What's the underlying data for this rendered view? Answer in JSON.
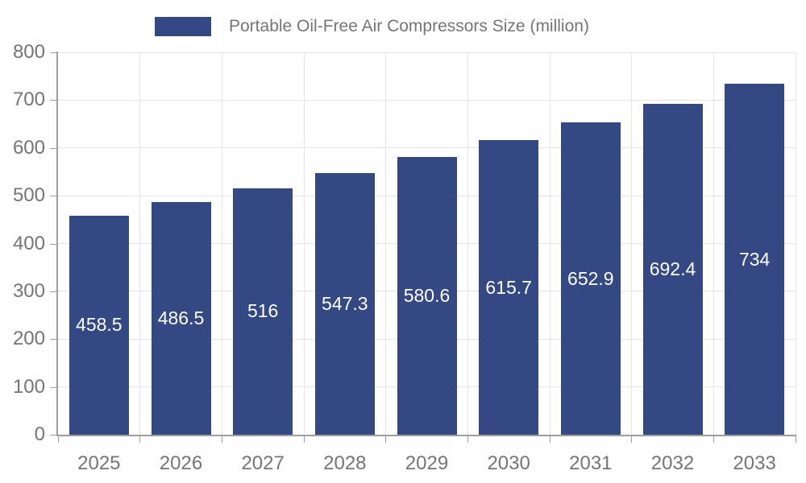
{
  "chart_data": {
    "type": "bar",
    "title": "Portable Oil-Free Air Compressors Size (million)",
    "categories": [
      "2025",
      "2026",
      "2027",
      "2028",
      "2029",
      "2030",
      "2031",
      "2032",
      "2033"
    ],
    "series": [
      {
        "name": "Portable Oil-Free Air Compressors Size (million)",
        "values": [
          458.5,
          486.5,
          516,
          547.3,
          580.6,
          615.7,
          652.9,
          692.4,
          734
        ]
      }
    ],
    "data_labels": [
      "458.5",
      "486.5",
      "516",
      "547.3",
      "580.6",
      "615.7",
      "652.9",
      "692.4",
      "734"
    ],
    "xlabel": "",
    "ylabel": "",
    "ylim": [
      0,
      800
    ],
    "yticks": [
      0,
      100,
      200,
      300,
      400,
      500,
      600,
      700,
      800
    ],
    "grid": true,
    "legend_position": "top",
    "colors": {
      "bar": "#344983",
      "bar_label": "#ffffff",
      "axis_text": "#757575",
      "axis_line": "#9e9e9e",
      "gridline": "#e6e6e6",
      "background": "#ffffff"
    }
  },
  "legend": {
    "label": "Portable Oil-Free Air Compressors Size (million)"
  }
}
